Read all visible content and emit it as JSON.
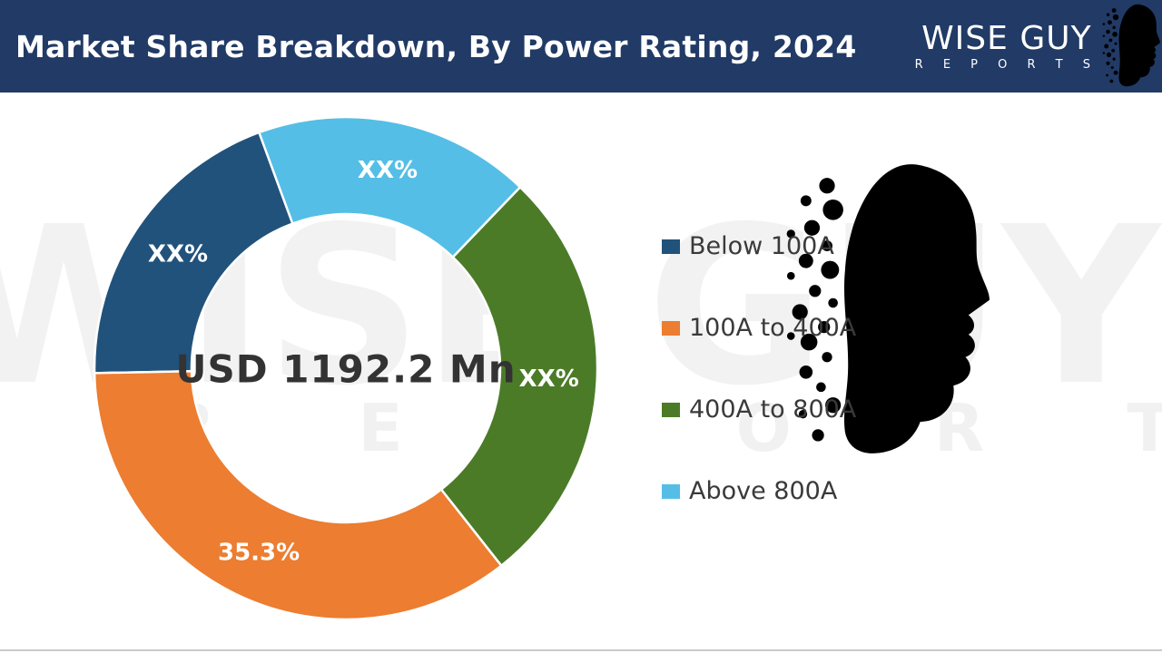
{
  "header": {
    "title": "Market Share Breakdown, By Power Rating, 2024",
    "bg_color": "#213A66",
    "logo": {
      "name": "WISE GUY",
      "subtitle": "R E P O R T S"
    }
  },
  "watermark": {
    "line1": "WISE GUY",
    "line2": "R E P O R T S"
  },
  "chart_data": {
    "type": "pie",
    "subtype": "donut",
    "title": "Market Share Breakdown, By Power Rating, 2024",
    "center_label": "USD 1192.2 Mn",
    "legend_position": "right",
    "start_angle_deg": 110.2,
    "direction": "ccw",
    "segments": [
      {
        "label": "Below 100A",
        "value_pct": 19.7,
        "display_label": "XX%",
        "color": "#21527B"
      },
      {
        "label": "100A to 400A",
        "value_pct": 35.3,
        "display_label": "35.3%",
        "color": "#EC7D31"
      },
      {
        "label": "400A to 800A",
        "value_pct": 27.2,
        "display_label": "XX%",
        "color": "#4C7B28"
      },
      {
        "label": "Above 800A",
        "value_pct": 17.8,
        "display_label": "XX%",
        "color": "#55BEE6"
      }
    ]
  }
}
